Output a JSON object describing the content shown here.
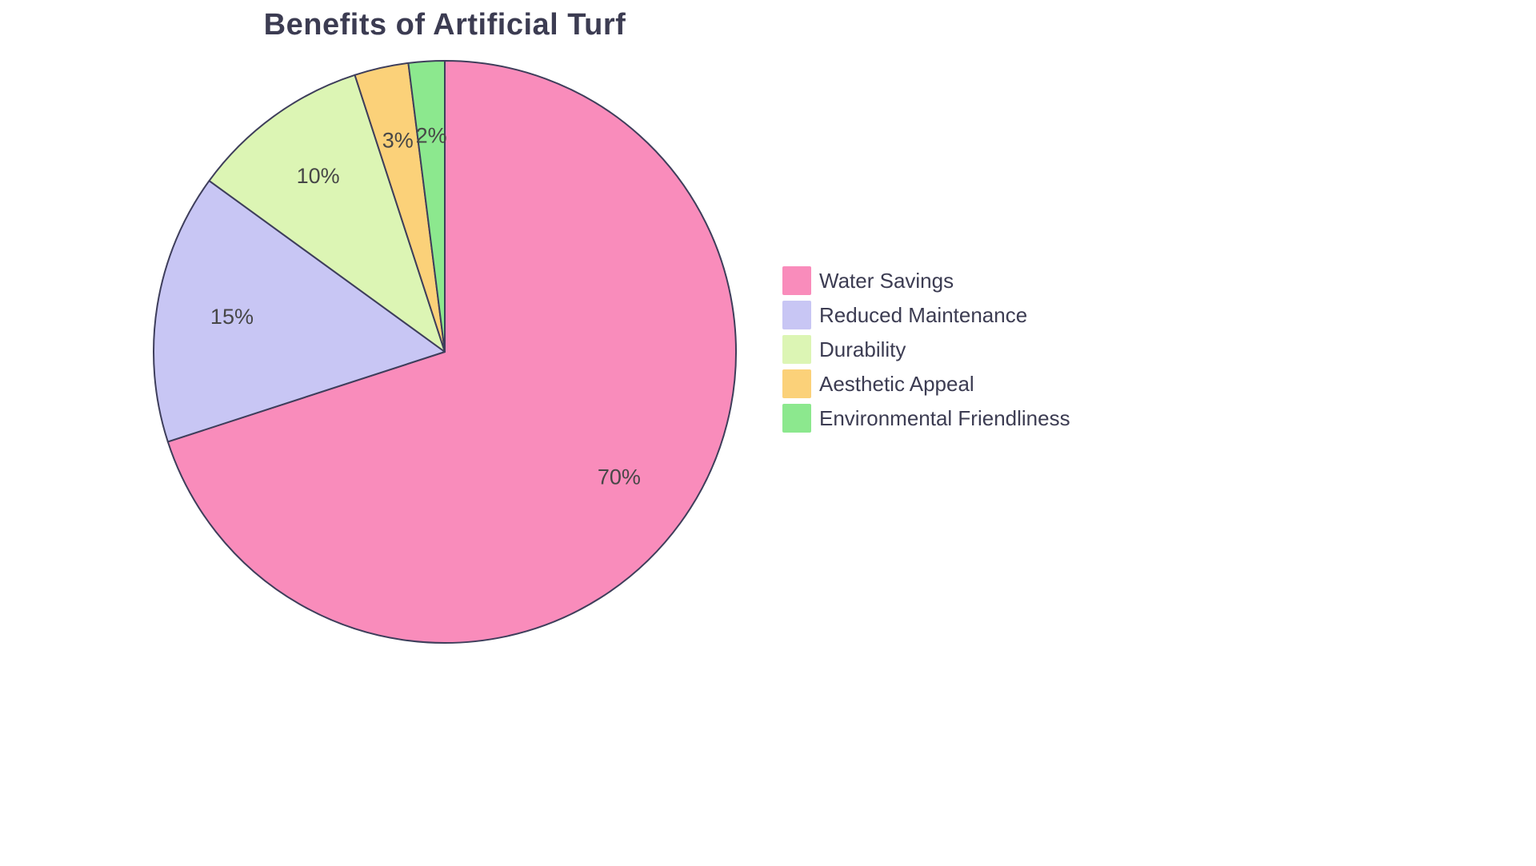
{
  "chart_data": {
    "type": "pie",
    "title": "Benefits of Artificial Turf",
    "labels": [
      "Water Savings",
      "Reduced Maintenance",
      "Durability",
      "Aesthetic Appeal",
      "Environmental Friendliness"
    ],
    "values": [
      70,
      15,
      10,
      3,
      2
    ],
    "percent_labels": [
      "70%",
      "15%",
      "10%",
      "3%",
      "2%"
    ],
    "colors": [
      "#F98CBB",
      "#C8C6F4",
      "#DCF5B4",
      "#FBD179",
      "#8CE88E"
    ],
    "stroke_color": "#3E3E5B",
    "title_color": "#3C3C52",
    "label_color": "#474747",
    "background": "#FFFFFF",
    "legend_position": "right",
    "start_angle_deg": 0,
    "direction": "clockwise"
  },
  "geometry_note": "pie centered left of legend"
}
